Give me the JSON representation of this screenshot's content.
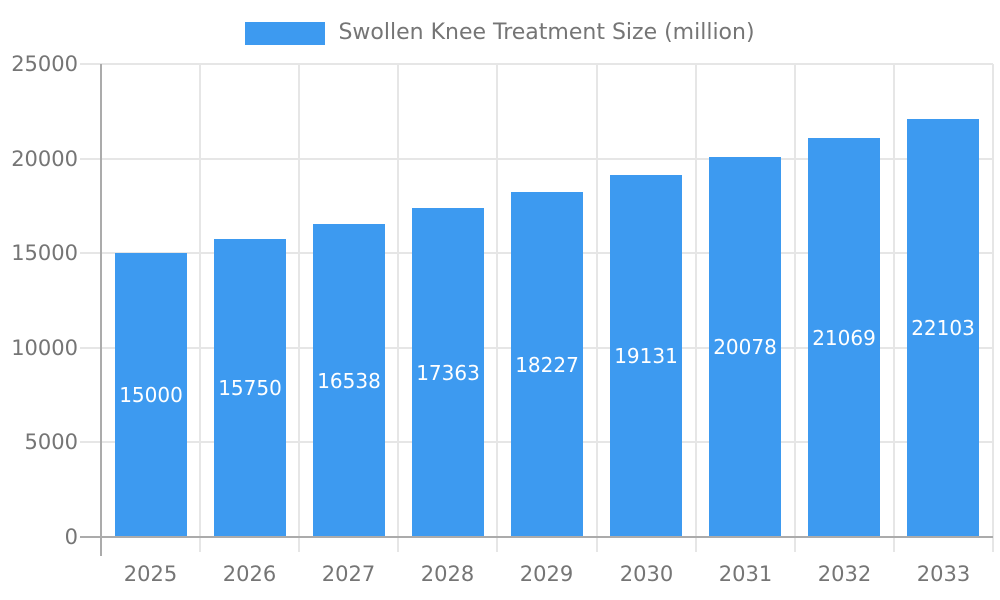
{
  "legend": {
    "label": "Swollen Knee Treatment Size (million)"
  },
  "chart_data": {
    "type": "bar",
    "title": "Swollen Knee Treatment Size (million)",
    "categories": [
      "2025",
      "2026",
      "2027",
      "2028",
      "2029",
      "2030",
      "2031",
      "2032",
      "2033"
    ],
    "values": [
      15000,
      15750,
      16538,
      17363,
      18227,
      19131,
      20078,
      21069,
      22103
    ],
    "data_labels": [
      "15000",
      "15750",
      "16538",
      "17363",
      "18227",
      "19131",
      "20078",
      "21069",
      "22103"
    ],
    "yticks": [
      0,
      5000,
      10000,
      15000,
      20000,
      25000
    ],
    "ytick_labels": [
      "0",
      "5000",
      "10000",
      "15000",
      "20000",
      "25000"
    ],
    "ylim": [
      0,
      25000
    ],
    "grid": true,
    "legend_position": "top"
  },
  "colors": {
    "bar_fill": "#3D9AF0",
    "bar_value_text": "#FFFFFF",
    "axis_label_text": "#757575",
    "legend_text": "#757575",
    "axis_line": "#ABABAB",
    "gridline": "#E6E6E6",
    "background": "#FFFFFF"
  }
}
